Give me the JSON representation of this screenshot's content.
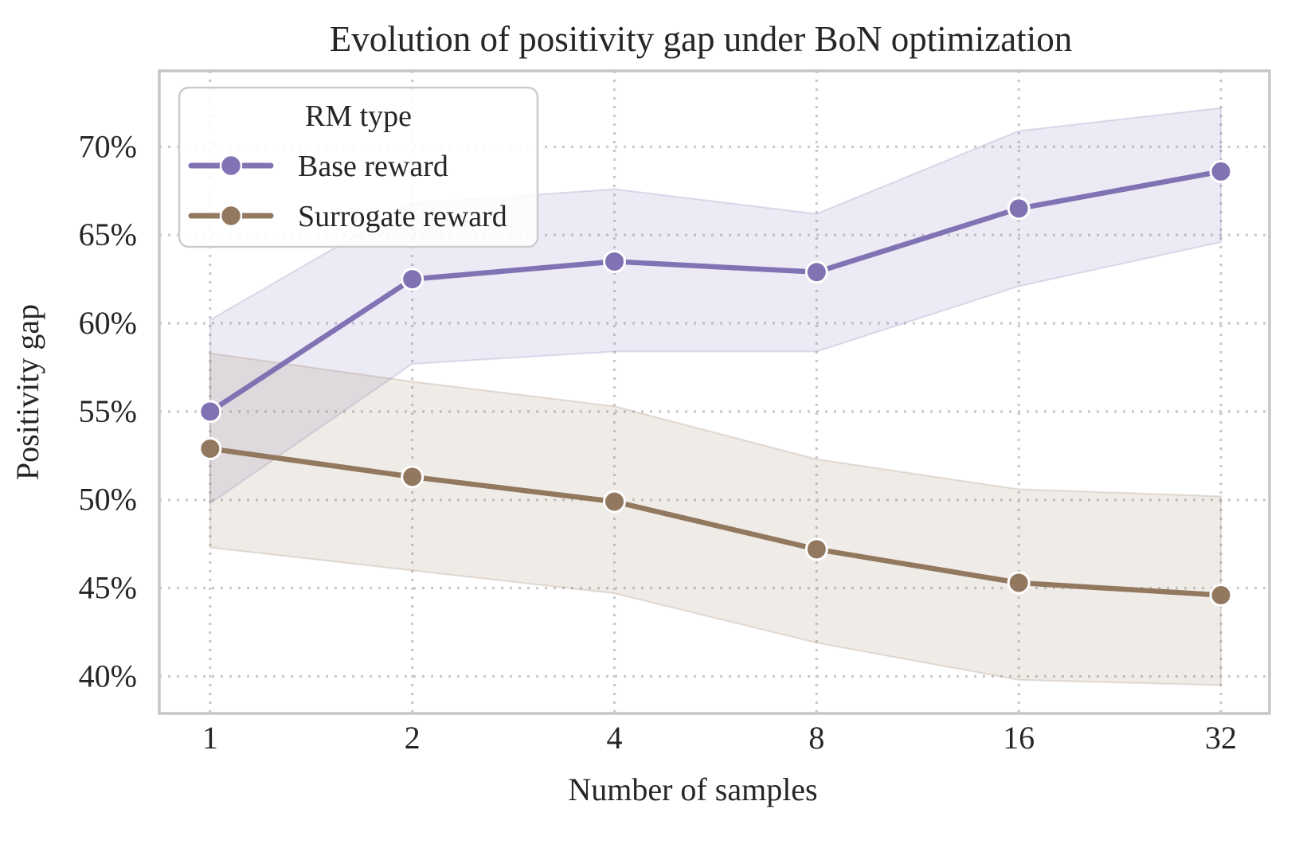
{
  "chart_data": {
    "type": "line",
    "title": "Evolution of positivity gap under BoN optimization",
    "xlabel": "Number of samples",
    "ylabel": "Positivity gap",
    "x": [
      1,
      2,
      4,
      8,
      16,
      32
    ],
    "x_scale": "log2",
    "x_tick_labels": [
      "1",
      "2",
      "4",
      "8",
      "16",
      "32"
    ],
    "xlim": [
      0.84,
      37.8
    ],
    "ylim": [
      37.9,
      74.3
    ],
    "yticks": [
      40,
      45,
      50,
      55,
      60,
      65,
      70
    ],
    "y_unit": "%",
    "grid": "dotted, both axes, axisbelow",
    "legend": {
      "title": "RM type",
      "position": "upper left",
      "entries": [
        "Base reward",
        "Surrogate reward"
      ]
    },
    "colors": {
      "base_reward": "#8172B3",
      "surrogate_reward": "#937860",
      "grid": "#c9c9c9",
      "frame": "#c6c6c6",
      "text": "#262626",
      "band_alpha": 0.15
    },
    "series": [
      {
        "name": "Base reward",
        "color": "#8172B3",
        "values": [
          55.0,
          62.5,
          63.5,
          62.9,
          66.5,
          68.6
        ],
        "band_hi": [
          60.2,
          66.8,
          67.6,
          66.2,
          70.9,
          72.2
        ],
        "band_lo": [
          49.8,
          57.7,
          58.4,
          58.4,
          62.1,
          64.6
        ]
      },
      {
        "name": "Surrogate reward",
        "color": "#937860",
        "values": [
          52.9,
          51.3,
          49.9,
          47.2,
          45.3,
          44.6
        ],
        "band_hi": [
          58.3,
          56.7,
          55.3,
          52.3,
          50.6,
          50.2
        ],
        "band_lo": [
          47.3,
          46.0,
          44.7,
          41.9,
          39.8,
          39.5
        ]
      }
    ]
  }
}
